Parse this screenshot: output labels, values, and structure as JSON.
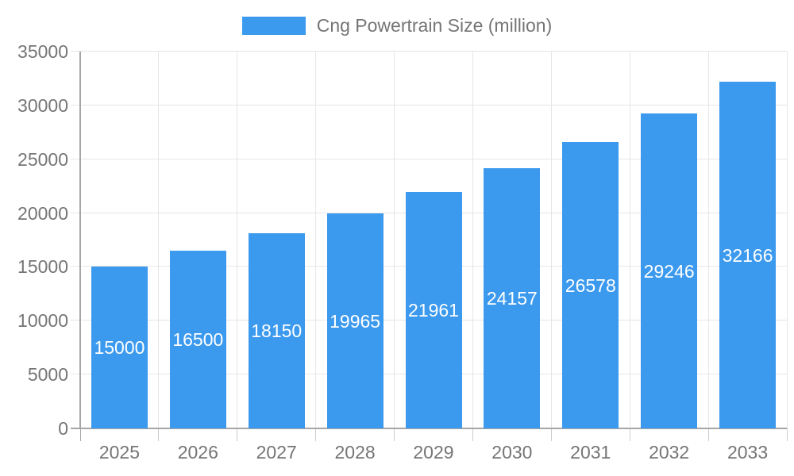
{
  "chart_data": {
    "type": "bar",
    "title": "",
    "legend_label": "Cng Powertrain Size (million)",
    "legend_position": "top",
    "categories": [
      "2025",
      "2026",
      "2027",
      "2028",
      "2029",
      "2030",
      "2031",
      "2032",
      "2033"
    ],
    "series": [
      {
        "name": "Cng Powertrain Size (million)",
        "values": [
          15000,
          16500,
          18150,
          19965,
          21961,
          24157,
          26578,
          29246,
          32166
        ]
      }
    ],
    "bar_value_labels": [
      "15000",
      "16500",
      "18150",
      "19965",
      "21961",
      "24157",
      "26578",
      "29246",
      "32166"
    ],
    "xlabel": "",
    "ylabel": "",
    "ylim": [
      0,
      35000
    ],
    "y_ticks": [
      0,
      5000,
      10000,
      15000,
      20000,
      25000,
      30000,
      35000
    ],
    "grid": true,
    "colors": {
      "bar": "#3b99ee",
      "bar_label_text": "#ffffff",
      "axis_text": "#757575",
      "gridline": "#e6e6e6",
      "minor_tick": "#cccccc",
      "axis_line": "#a6a6a6",
      "background": "#ffffff"
    }
  }
}
